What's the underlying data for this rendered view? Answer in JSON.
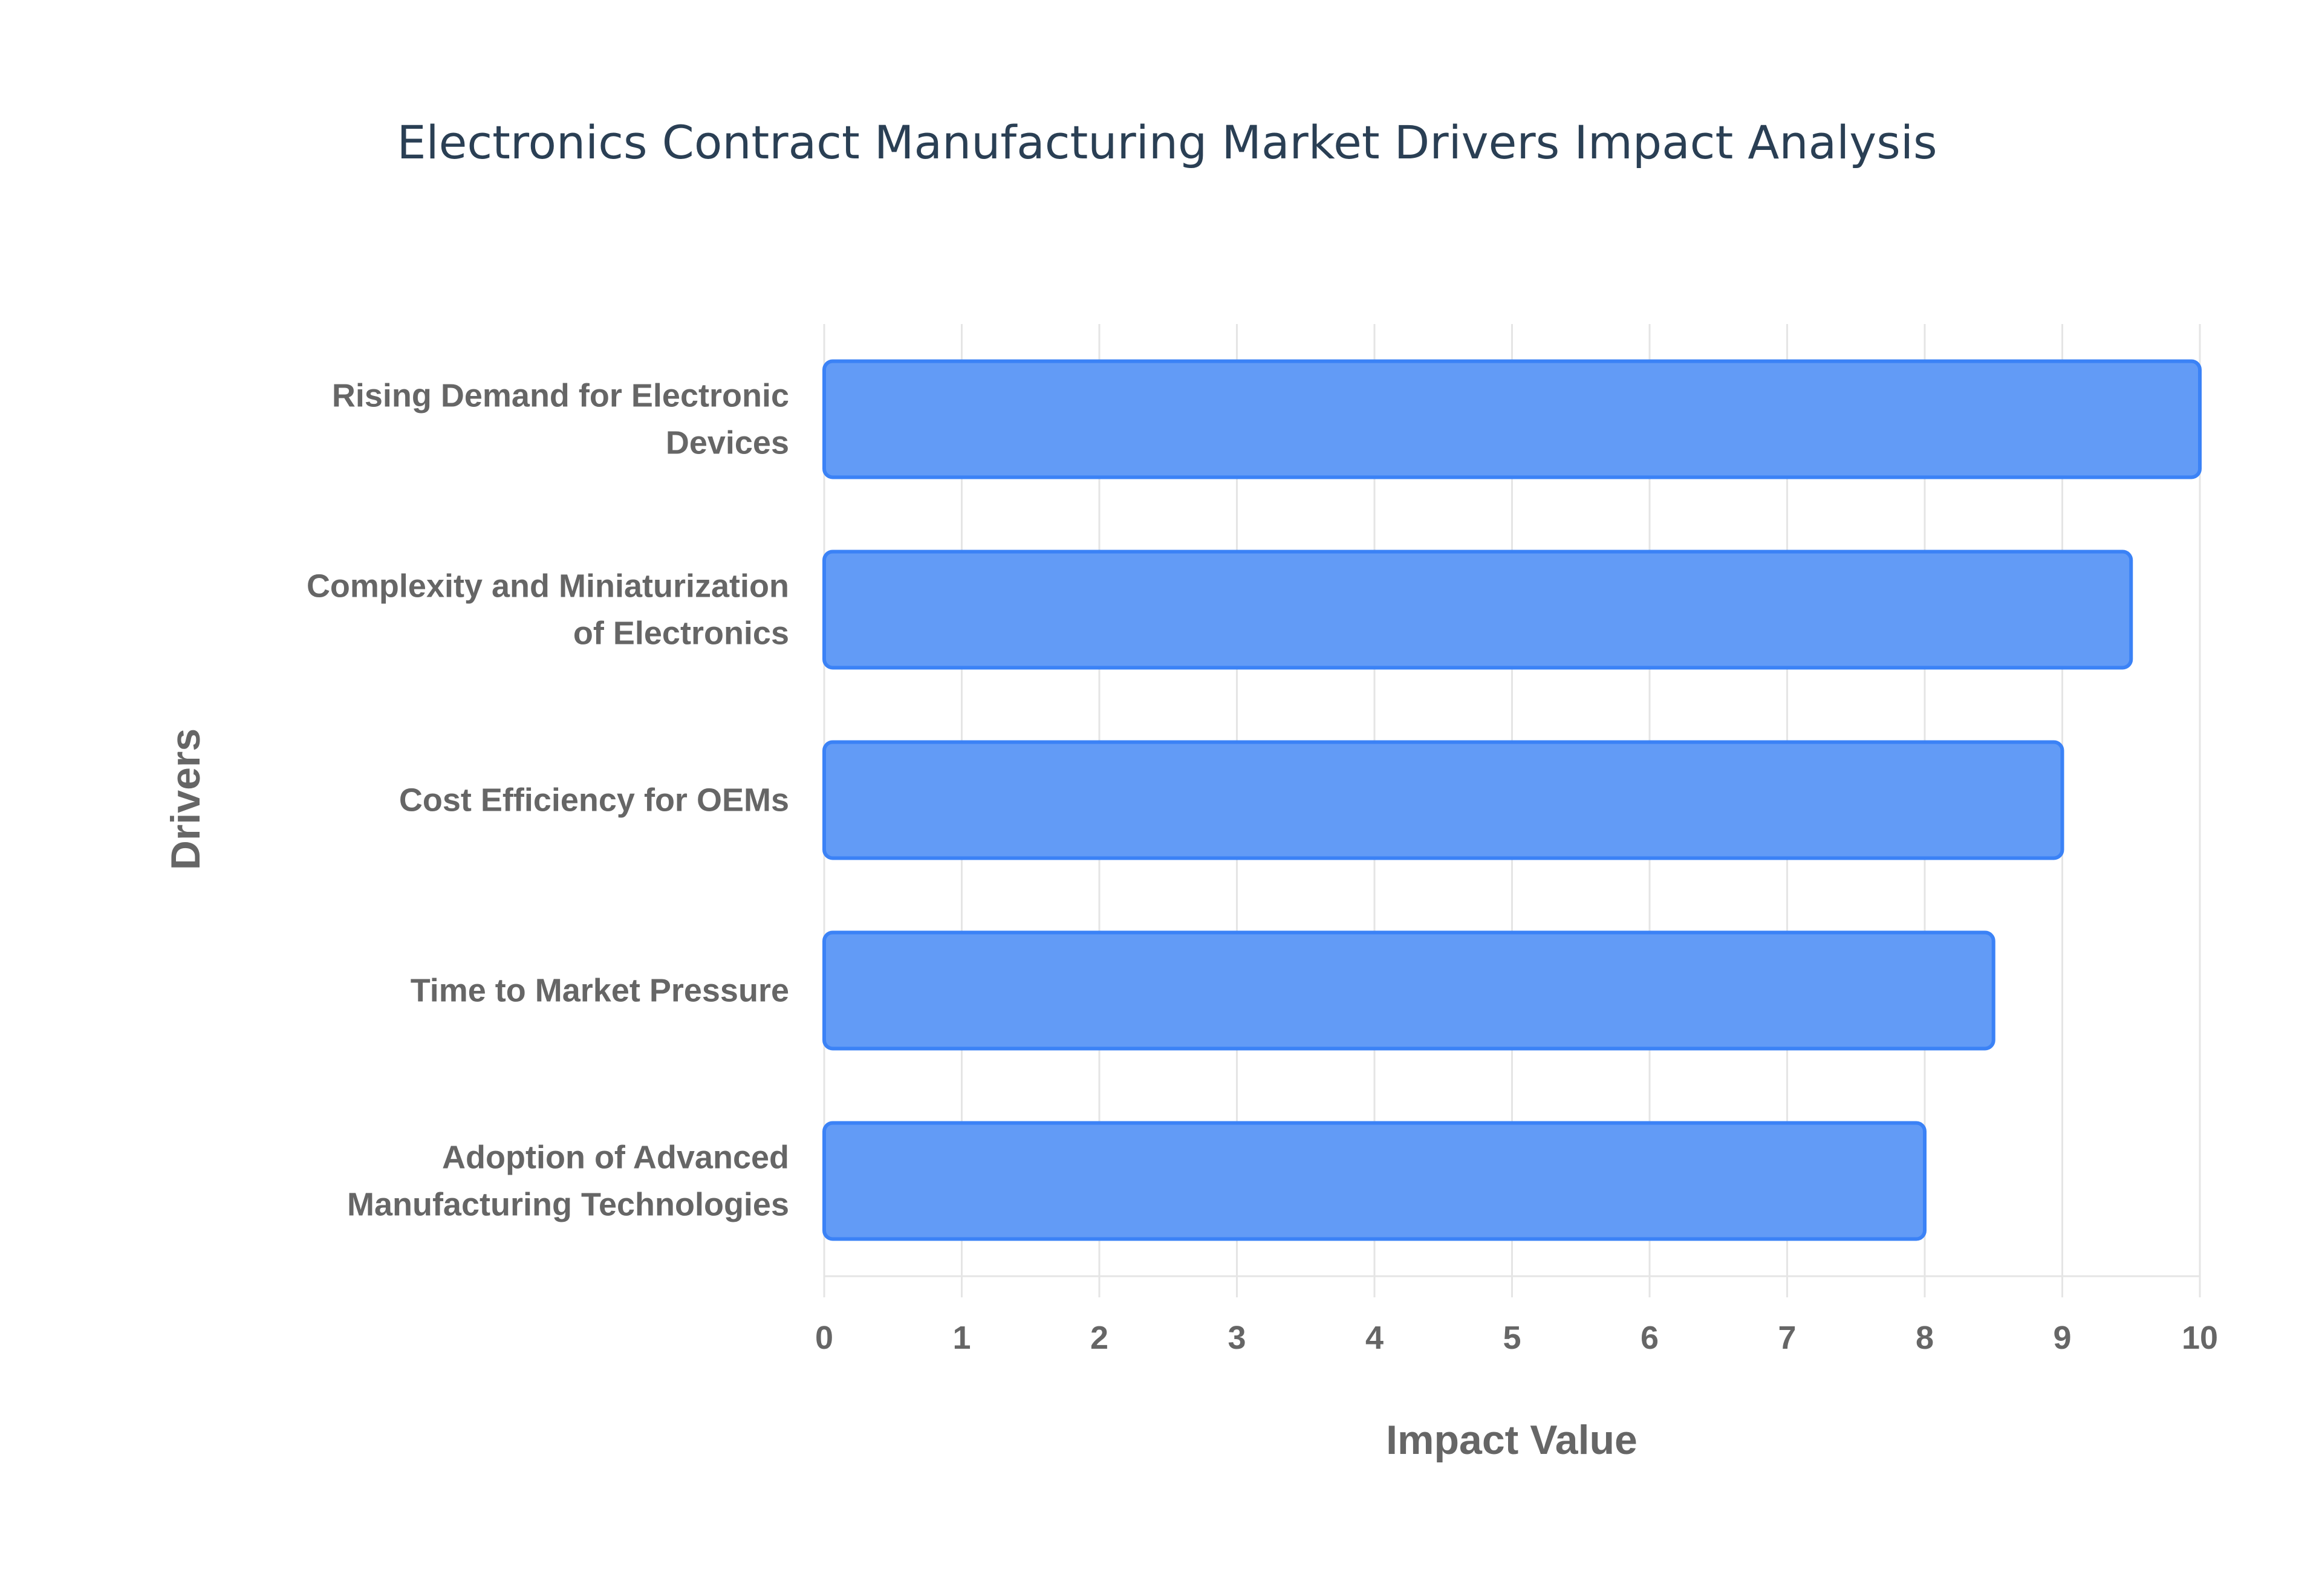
{
  "chart_data": {
    "type": "bar",
    "orientation": "horizontal",
    "title": "Electronics Contract Manufacturing Market Drivers Impact Analysis",
    "xlabel": "Impact Value",
    "ylabel": "Drivers",
    "categories": [
      [
        "Rising Demand for Electronic",
        "Devices"
      ],
      [
        "Complexity and Miniaturization",
        "of Electronics"
      ],
      [
        "Cost Efficiency for OEMs"
      ],
      [
        "Time to Market Pressure"
      ],
      [
        "Adoption of Advanced",
        "Manufacturing Technologies"
      ]
    ],
    "values": [
      10,
      9.5,
      9,
      8.5,
      8
    ],
    "xlim": [
      0,
      10
    ],
    "xticks": [
      "0",
      "1",
      "2",
      "3",
      "4",
      "5",
      "6",
      "7",
      "8",
      "9",
      "10"
    ],
    "grid": true,
    "colors": {
      "bar_fill": "#629bf6",
      "bar_border": "#3b82f6",
      "grid": "#e5e5e5"
    }
  }
}
